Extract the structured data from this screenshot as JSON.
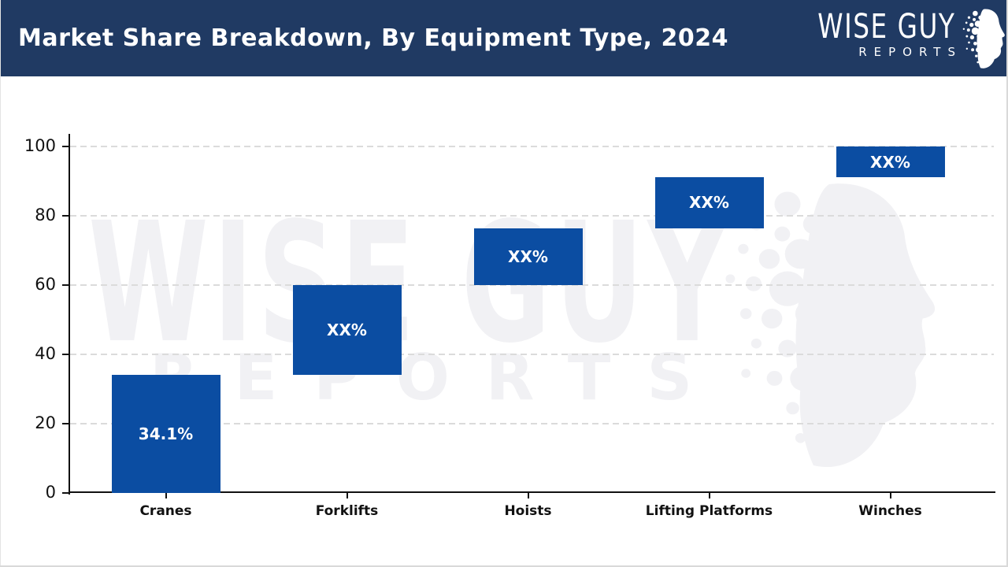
{
  "header": {
    "title": "Market Share Breakdown, By Equipment Type, 2024",
    "bg_color": "#203a63",
    "logo": {
      "line1": "WISE GUY",
      "line2": "REPORTS"
    }
  },
  "watermark": {
    "line1": "WISE GUY",
    "line2": "REPORTS"
  },
  "chart_data": {
    "type": "bar",
    "subtype": "waterfall",
    "title": "Market Share Breakdown, By Equipment Type, 2024",
    "categories": [
      "Cranes",
      "Forklifts",
      "Hoists",
      "Lifting Platforms",
      "Winches"
    ],
    "segments": [
      {
        "category": "Cranes",
        "start": 0,
        "end": 34.1,
        "label": "34.1%"
      },
      {
        "category": "Forklifts",
        "start": 34.1,
        "end": 60,
        "label": "XX%"
      },
      {
        "category": "Hoists",
        "start": 60,
        "end": 76.5,
        "label": "XX%"
      },
      {
        "category": "Lifting Platforms",
        "start": 76.5,
        "end": 91.2,
        "label": "XX%"
      },
      {
        "category": "Winches",
        "start": 91.2,
        "end": 100,
        "label": "XX%"
      }
    ],
    "yticks": [
      0,
      20,
      40,
      60,
      80,
      100
    ],
    "ylim": [
      0,
      103.7
    ],
    "grid": true,
    "grid_style": "dashed",
    "legend": false,
    "bar_color": "#0b4da2",
    "bar_label_color": "#ffffff",
    "grid_color": "#dbdbdb",
    "axis_color": "#111111"
  }
}
